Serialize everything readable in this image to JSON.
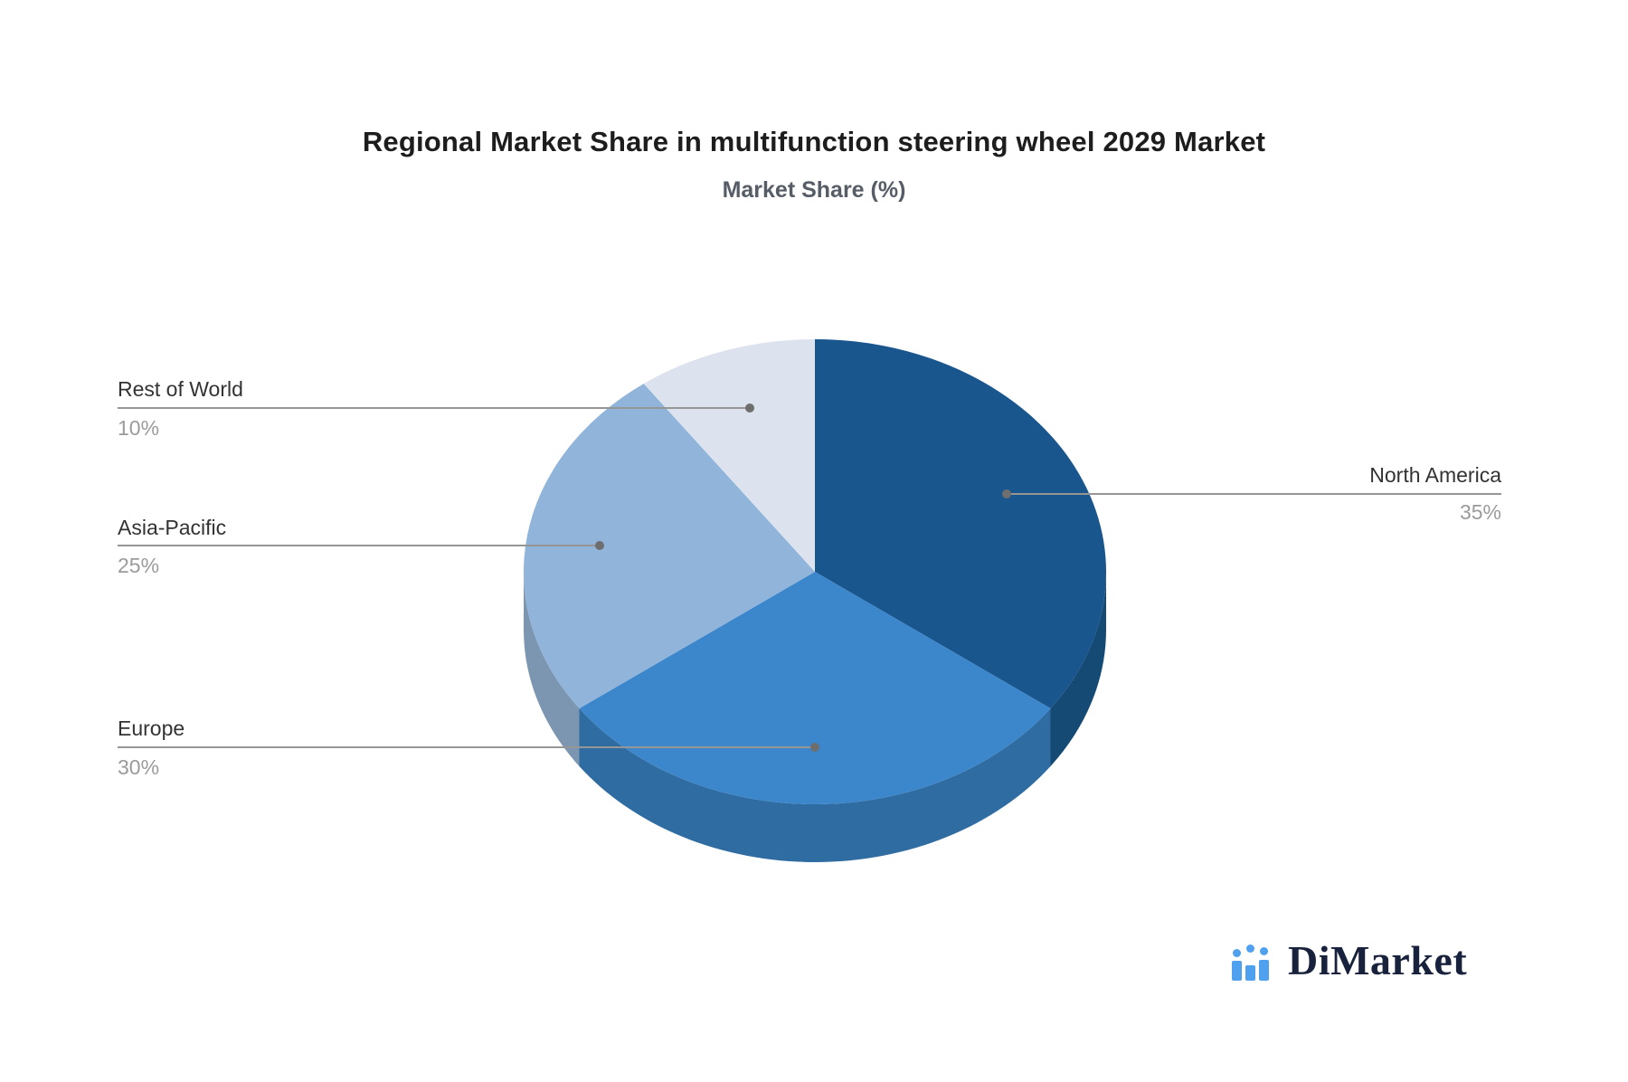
{
  "title": "Regional Market Share in multifunction steering wheel 2029 Market",
  "subtitle": "Market Share (%)",
  "chart_data": {
    "type": "pie",
    "title": "Regional Market Share in multifunction steering wheel 2029 Market",
    "subtitle": "Market Share (%)",
    "style": "3d-pie",
    "start_angle": "12-o-clock",
    "direction": "clockwise",
    "legend_position": "callout-labels",
    "slices": [
      {
        "name": "North America",
        "value": 35,
        "label": "35%",
        "color": "#1A568E",
        "side_color": "#144A73"
      },
      {
        "name": "Europe",
        "value": 30,
        "label": "30%",
        "color": "#3C87CB",
        "side_color": "#2F6CA2"
      },
      {
        "name": "Asia-Pacific",
        "value": 25,
        "label": "25%",
        "color": "#90B4DA",
        "side_color": "#7C95B1"
      },
      {
        "name": "Rest of World",
        "value": 10,
        "label": "10%",
        "color": "#DCE3EE",
        "side_color": "#C6CEDC"
      }
    ]
  },
  "colors": {
    "background": "#FFFFFF",
    "title_text": "#1D1D1D",
    "subtitle_text": "#565D66",
    "label_name_text": "#333333",
    "label_value_text": "#9B9B9B",
    "leader_line": "#969696",
    "leader_dot": "#6E6E6E",
    "logo_icon_blue": "#4FA0EF",
    "logo_text_navy": "#18223C"
  },
  "logo": {
    "text": "DiMarket",
    "icon": "bar-chart-icon"
  }
}
